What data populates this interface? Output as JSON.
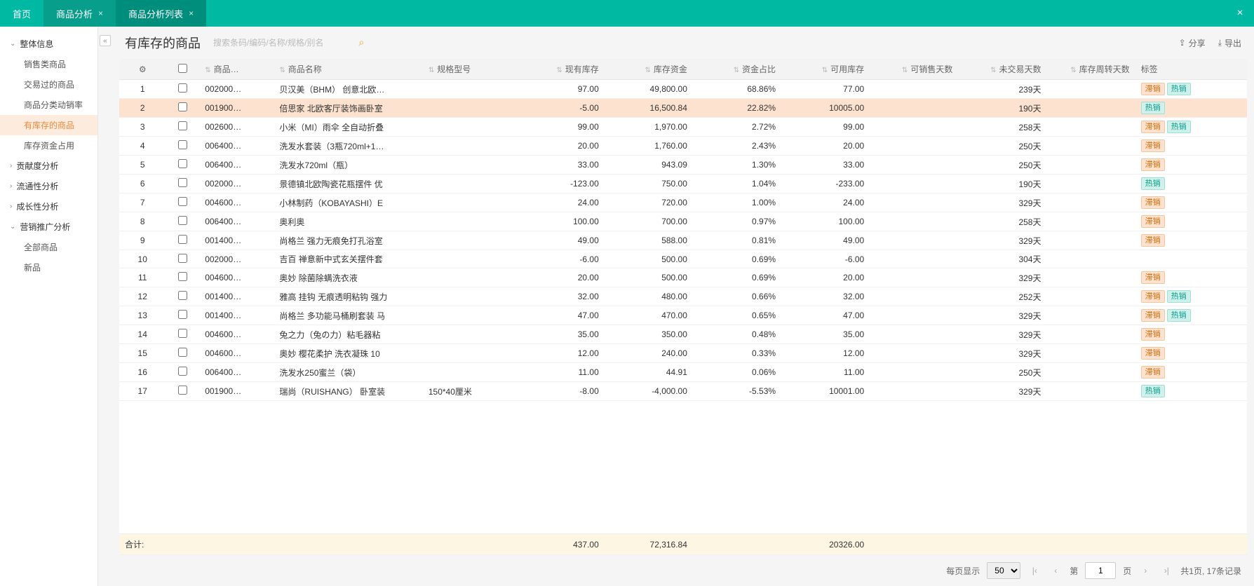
{
  "tabs": {
    "home": "首页",
    "items": [
      {
        "label": "商品分析",
        "active": false
      },
      {
        "label": "商品分析列表",
        "active": true
      }
    ]
  },
  "sidebar": {
    "groups": [
      {
        "label": "整体信息",
        "expanded": true,
        "items": [
          {
            "label": "销售类商品"
          },
          {
            "label": "交易过的商品"
          },
          {
            "label": "商品分类动销率"
          },
          {
            "label": "有库存的商品",
            "active": true
          },
          {
            "label": "库存资金占用"
          }
        ]
      },
      {
        "label": "贡献度分析",
        "expanded": false,
        "items": []
      },
      {
        "label": "流通性分析",
        "expanded": false,
        "items": []
      },
      {
        "label": "成长性分析",
        "expanded": false,
        "items": []
      },
      {
        "label": "营销推广分析",
        "expanded": true,
        "items": [
          {
            "label": "全部商品"
          },
          {
            "label": "新品"
          }
        ]
      }
    ]
  },
  "header": {
    "title": "有库存的商品",
    "search_placeholder": "搜索条码/编码/名称/规格/别名",
    "share": "分享",
    "export": "导出"
  },
  "columns": [
    {
      "key": "idx",
      "label": "",
      "class": "col-idx",
      "gear": true
    },
    {
      "key": "chk",
      "label": "",
      "class": "col-chk",
      "checkbox": true
    },
    {
      "key": "code",
      "label": "商品…",
      "class": "col-code",
      "sortable": true
    },
    {
      "key": "name",
      "label": "商品名称",
      "class": "col-name",
      "sortable": true
    },
    {
      "key": "spec",
      "label": "规格型号",
      "class": "col-spec",
      "sortable": true
    },
    {
      "key": "stock",
      "label": "现有库存",
      "class": "col-num",
      "sortable": true
    },
    {
      "key": "fund",
      "label": "库存资金",
      "class": "col-num",
      "sortable": true
    },
    {
      "key": "pct",
      "label": "资金占比",
      "class": "col-num",
      "sortable": true
    },
    {
      "key": "avail",
      "label": "可用库存",
      "class": "col-num",
      "sortable": true
    },
    {
      "key": "sale_days",
      "label": "可销售天数",
      "class": "col-num",
      "sortable": true
    },
    {
      "key": "no_trade_days",
      "label": "未交易天数",
      "class": "col-num",
      "sortable": true
    },
    {
      "key": "turn_days",
      "label": "库存周转天数",
      "class": "col-num",
      "sortable": true
    },
    {
      "key": "tags",
      "label": "标签",
      "class": "col-tags"
    }
  ],
  "rows": [
    {
      "code": "002000…",
      "name": "贝汉美（BHM） 创意北欧…",
      "spec": "",
      "stock": "97.00",
      "fund": "49,800.00",
      "pct": "68.86%",
      "avail": "77.00",
      "sale_days": "",
      "no_trade_days": "239天",
      "turn_days": "",
      "tags": [
        "滞销",
        "热销"
      ]
    },
    {
      "code": "001900…",
      "name": "倍思家 北欧客厅装饰画卧室",
      "spec": "",
      "stock": "-5.00",
      "fund": "16,500.84",
      "pct": "22.82%",
      "avail": "10005.00",
      "sale_days": "",
      "no_trade_days": "190天",
      "turn_days": "",
      "tags": [
        "热销"
      ],
      "highlight": true
    },
    {
      "code": "002600…",
      "name": "小米（MI）雨伞 全自动折叠",
      "spec": "",
      "stock": "99.00",
      "fund": "1,970.00",
      "pct": "2.72%",
      "avail": "99.00",
      "sale_days": "",
      "no_trade_days": "258天",
      "turn_days": "",
      "tags": [
        "滞销",
        "热销"
      ]
    },
    {
      "code": "006400…",
      "name": "洗发水套装（3瓶720ml+1…",
      "spec": "",
      "stock": "20.00",
      "fund": "1,760.00",
      "pct": "2.43%",
      "avail": "20.00",
      "sale_days": "",
      "no_trade_days": "250天",
      "turn_days": "",
      "tags": [
        "滞销"
      ]
    },
    {
      "code": "006400…",
      "name": "洗发水720ml（瓶）",
      "spec": "",
      "stock": "33.00",
      "fund": "943.09",
      "pct": "1.30%",
      "avail": "33.00",
      "sale_days": "",
      "no_trade_days": "250天",
      "turn_days": "",
      "tags": [
        "滞销"
      ]
    },
    {
      "code": "002000…",
      "name": "景德镇北欧陶瓷花瓶摆件 优",
      "spec": "",
      "stock": "-123.00",
      "fund": "750.00",
      "pct": "1.04%",
      "avail": "-233.00",
      "sale_days": "",
      "no_trade_days": "190天",
      "turn_days": "",
      "tags": [
        "热销"
      ]
    },
    {
      "code": "004600…",
      "name": "小林制药（KOBAYASHI）E",
      "spec": "",
      "stock": "24.00",
      "fund": "720.00",
      "pct": "1.00%",
      "avail": "24.00",
      "sale_days": "",
      "no_trade_days": "329天",
      "turn_days": "",
      "tags": [
        "滞销"
      ]
    },
    {
      "code": "006400…",
      "name": "奥利奥",
      "spec": "",
      "stock": "100.00",
      "fund": "700.00",
      "pct": "0.97%",
      "avail": "100.00",
      "sale_days": "",
      "no_trade_days": "258天",
      "turn_days": "",
      "tags": [
        "滞销"
      ]
    },
    {
      "code": "001400…",
      "name": "尚格兰 强力无痕免打孔浴室",
      "spec": "",
      "stock": "49.00",
      "fund": "588.00",
      "pct": "0.81%",
      "avail": "49.00",
      "sale_days": "",
      "no_trade_days": "329天",
      "turn_days": "",
      "tags": [
        "滞销"
      ]
    },
    {
      "code": "002000…",
      "name": "吉百 禅意新中式玄关摆件套",
      "spec": "",
      "stock": "-6.00",
      "fund": "500.00",
      "pct": "0.69%",
      "avail": "-6.00",
      "sale_days": "",
      "no_trade_days": "304天",
      "turn_days": "",
      "tags": []
    },
    {
      "code": "004600…",
      "name": "奥妙 除菌除螨洗衣液",
      "spec": "",
      "stock": "20.00",
      "fund": "500.00",
      "pct": "0.69%",
      "avail": "20.00",
      "sale_days": "",
      "no_trade_days": "329天",
      "turn_days": "",
      "tags": [
        "滞销"
      ]
    },
    {
      "code": "001400…",
      "name": "雅高 挂钩 无痕透明粘钩 强力",
      "spec": "",
      "stock": "32.00",
      "fund": "480.00",
      "pct": "0.66%",
      "avail": "32.00",
      "sale_days": "",
      "no_trade_days": "252天",
      "turn_days": "",
      "tags": [
        "滞销",
        "热销"
      ]
    },
    {
      "code": "001400…",
      "name": "尚格兰 多功能马桶刷套装 马",
      "spec": "",
      "stock": "47.00",
      "fund": "470.00",
      "pct": "0.65%",
      "avail": "47.00",
      "sale_days": "",
      "no_trade_days": "329天",
      "turn_days": "",
      "tags": [
        "滞销",
        "热销"
      ]
    },
    {
      "code": "004600…",
      "name": "兔之力（兔の力）粘毛器粘",
      "spec": "",
      "stock": "35.00",
      "fund": "350.00",
      "pct": "0.48%",
      "avail": "35.00",
      "sale_days": "",
      "no_trade_days": "329天",
      "turn_days": "",
      "tags": [
        "滞销"
      ]
    },
    {
      "code": "004600…",
      "name": "奥妙 樱花柔护 洗衣凝珠 10",
      "spec": "",
      "stock": "12.00",
      "fund": "240.00",
      "pct": "0.33%",
      "avail": "12.00",
      "sale_days": "",
      "no_trade_days": "329天",
      "turn_days": "",
      "tags": [
        "滞销"
      ]
    },
    {
      "code": "006400…",
      "name": "洗发水250蜜兰（袋）",
      "spec": "",
      "stock": "11.00",
      "fund": "44.91",
      "pct": "0.06%",
      "avail": "11.00",
      "sale_days": "",
      "no_trade_days": "250天",
      "turn_days": "",
      "tags": [
        "滞销"
      ]
    },
    {
      "code": "001900…",
      "name": "瑞尚（RUISHANG） 卧室装",
      "spec": "150*40厘米",
      "stock": "-8.00",
      "fund": "-4,000.00",
      "pct": "-5.53%",
      "avail": "10001.00",
      "sale_days": "",
      "no_trade_days": "329天",
      "turn_days": "",
      "tags": [
        "热销"
      ]
    }
  ],
  "totals": {
    "label": "合计:",
    "stock": "437.00",
    "fund": "72,316.84",
    "avail": "20326.00"
  },
  "pager": {
    "per_page_label": "每页显示",
    "per_page": "50",
    "page_prefix": "第",
    "page": "1",
    "page_suffix": "页",
    "summary": "共1页, 17条记录"
  },
  "tag_styles": {
    "滞销": "tag-orange",
    "热销": "tag-teal"
  }
}
